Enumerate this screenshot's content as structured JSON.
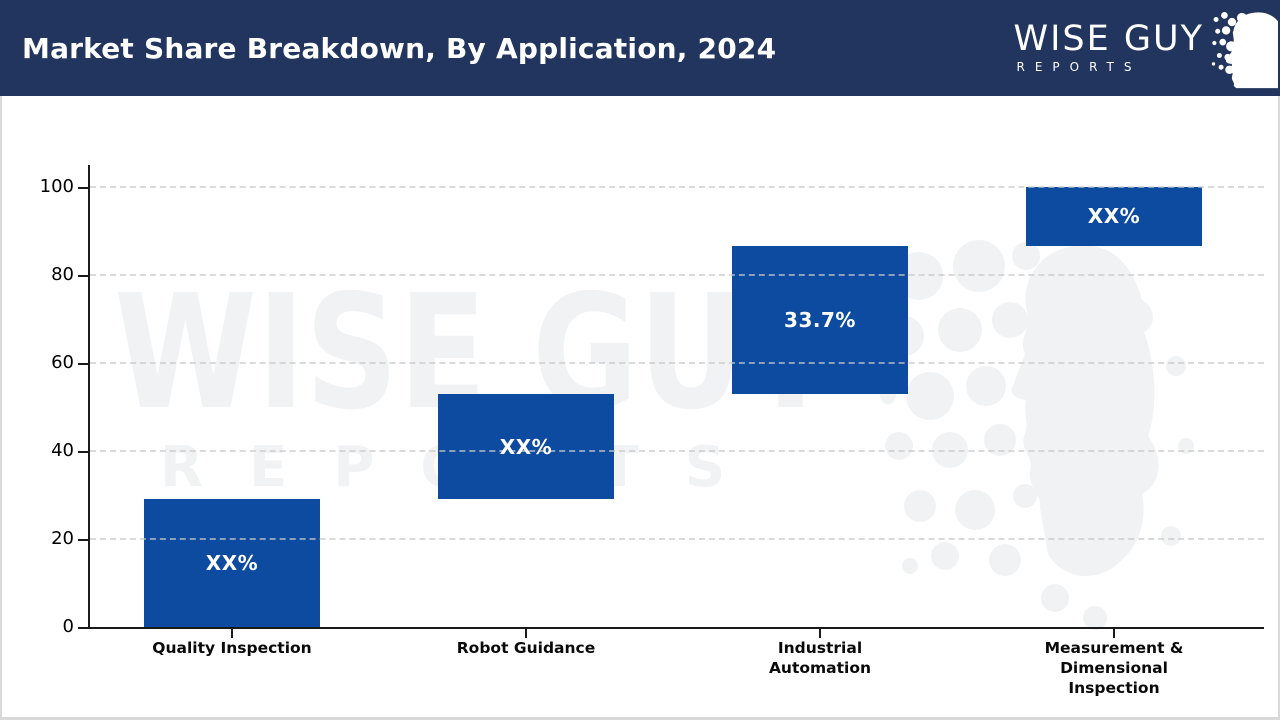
{
  "header": {
    "title": "Market Share Breakdown, By Application, 2024",
    "logo": {
      "line1": "WISE GUY",
      "line2": "REPORTS"
    }
  },
  "watermark": {
    "line1": "WISE GUY",
    "line2": "REPORTS"
  },
  "colors": {
    "header_bg": "#22355F",
    "bar": "#0D4BA0",
    "axis": "#1A1A1A",
    "grid": "#C8C8C8",
    "bar_label": "#FFFFFF",
    "tick_label": "#000000",
    "watermark": "#F1F2F4"
  },
  "chart_data": {
    "type": "bar",
    "subtype": "waterfall-floating-segments",
    "title": "Market Share Breakdown, By Application, 2024",
    "categories": [
      "Quality Inspection",
      "Robot Guidance",
      "Industrial Automation",
      "Measurement & Dimensional Inspection"
    ],
    "category_lines": [
      [
        "Quality Inspection"
      ],
      [
        "Robot Guidance"
      ],
      [
        "Industrial",
        "Automation"
      ],
      [
        "Measurement &",
        "Dimensional",
        "Inspection"
      ]
    ],
    "segments": [
      {
        "category": "Quality Inspection",
        "start": 0,
        "end": 29,
        "size": 29,
        "label": "XX%"
      },
      {
        "category": "Robot Guidance",
        "start": 29,
        "end": 53,
        "size": 24,
        "label": "XX%"
      },
      {
        "category": "Industrial Automation",
        "start": 53,
        "end": 86.7,
        "size": 33.7,
        "label": "33.7%"
      },
      {
        "category": "Measurement & Dimensional Inspection",
        "start": 86.7,
        "end": 100,
        "size": 13.3,
        "label": "XX%"
      }
    ],
    "yticks": [
      0,
      20,
      40,
      60,
      80,
      100
    ],
    "ylim": [
      0,
      105
    ],
    "xlabel": "",
    "ylabel": "",
    "grid": "horizontal-dashed-above-bars",
    "legend": "none"
  }
}
